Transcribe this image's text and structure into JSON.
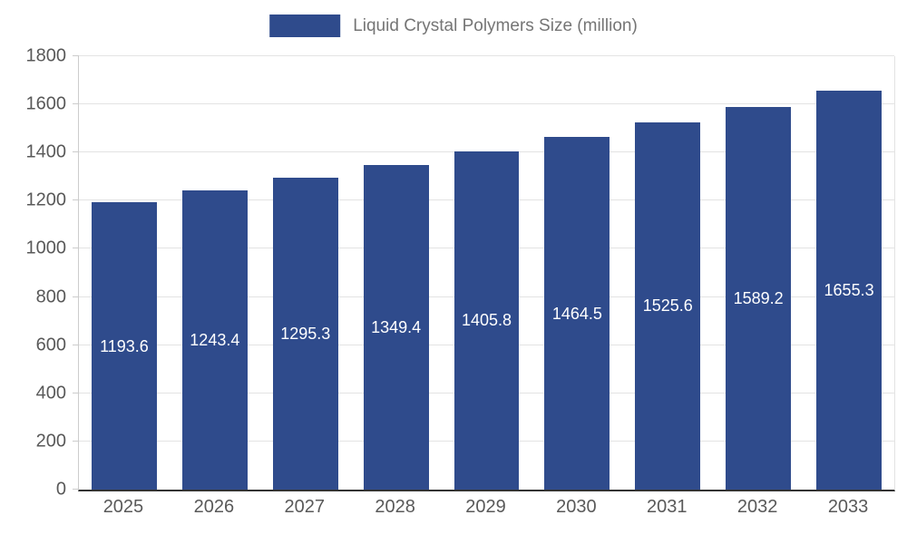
{
  "chart_data": {
    "type": "bar",
    "title": "Liquid Crystal Polymers Size (million)",
    "categories": [
      "2025",
      "2026",
      "2027",
      "2028",
      "2029",
      "2030",
      "2031",
      "2032",
      "2033"
    ],
    "values": [
      1193.6,
      1243.4,
      1295.3,
      1349.4,
      1405.8,
      1464.5,
      1525.6,
      1589.2,
      1655.3
    ],
    "value_labels": [
      "1193.6",
      "1243.4",
      "1295.3",
      "1349.4",
      "1405.8",
      "1464.5",
      "1525.6",
      "1589.2",
      "1655.3"
    ],
    "xlabel": "",
    "ylabel": "",
    "ylim": [
      0,
      1800
    ],
    "ytick_step": 200,
    "ytick_labels": [
      "0",
      "200",
      "400",
      "600",
      "800",
      "1000",
      "1200",
      "1400",
      "1600",
      "1800"
    ],
    "grid": true,
    "legend_position": "top-center",
    "colors": {
      "bar": "#2F4B8C",
      "grid_line": "#e3e3e3",
      "axis_line": "#333333",
      "tick_label": "#595959",
      "legend_text": "#757575",
      "bar_label": "#ffffff",
      "background": "#ffffff"
    }
  }
}
